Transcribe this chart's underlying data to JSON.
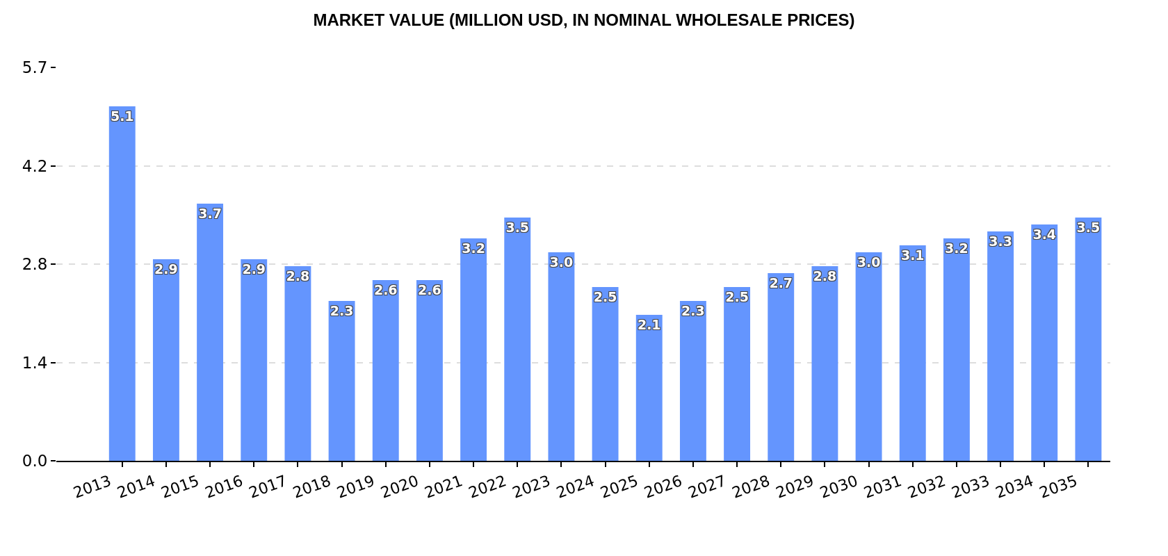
{
  "chart_data": {
    "type": "bar",
    "title": "MARKET VALUE (MILLION USD, IN NOMINAL WHOLESALE PRICES)",
    "categories": [
      "2013",
      "2014",
      "2015",
      "2016",
      "2017",
      "2018",
      "2019",
      "2020",
      "2021",
      "2022",
      "2023",
      "2024",
      "2025",
      "2026",
      "2027",
      "2028",
      "2029",
      "2030",
      "2031",
      "2032",
      "2033",
      "2034",
      "2035"
    ],
    "values": [
      5.1,
      2.9,
      3.7,
      2.9,
      2.8,
      2.3,
      2.6,
      2.6,
      3.2,
      3.5,
      3.0,
      2.5,
      2.1,
      2.3,
      2.5,
      2.7,
      2.8,
      3.0,
      3.1,
      3.2,
      3.3,
      3.4,
      3.5
    ],
    "value_labels": [
      "5.1",
      "2.9",
      "3.7",
      "2.9",
      "2.8",
      "2.3",
      "2.6",
      "2.6",
      "3.2",
      "3.5",
      "3.0",
      "2.5",
      "2.1",
      "2.3",
      "2.5",
      "2.7",
      "2.8",
      "3.0",
      "3.1",
      "3.2",
      "3.3",
      "3.4",
      "3.5"
    ],
    "color": "#6495fe",
    "ylim": [
      0,
      5.66
    ],
    "yticks": [
      {
        "value": 0,
        "label": "0.0"
      },
      {
        "value": 1.415,
        "label": "1.4"
      },
      {
        "value": 2.83,
        "label": "2.8"
      },
      {
        "value": 4.245,
        "label": "4.2"
      },
      {
        "value": 5.66,
        "label": "5.7"
      }
    ],
    "grid": "y",
    "legend": false
  }
}
